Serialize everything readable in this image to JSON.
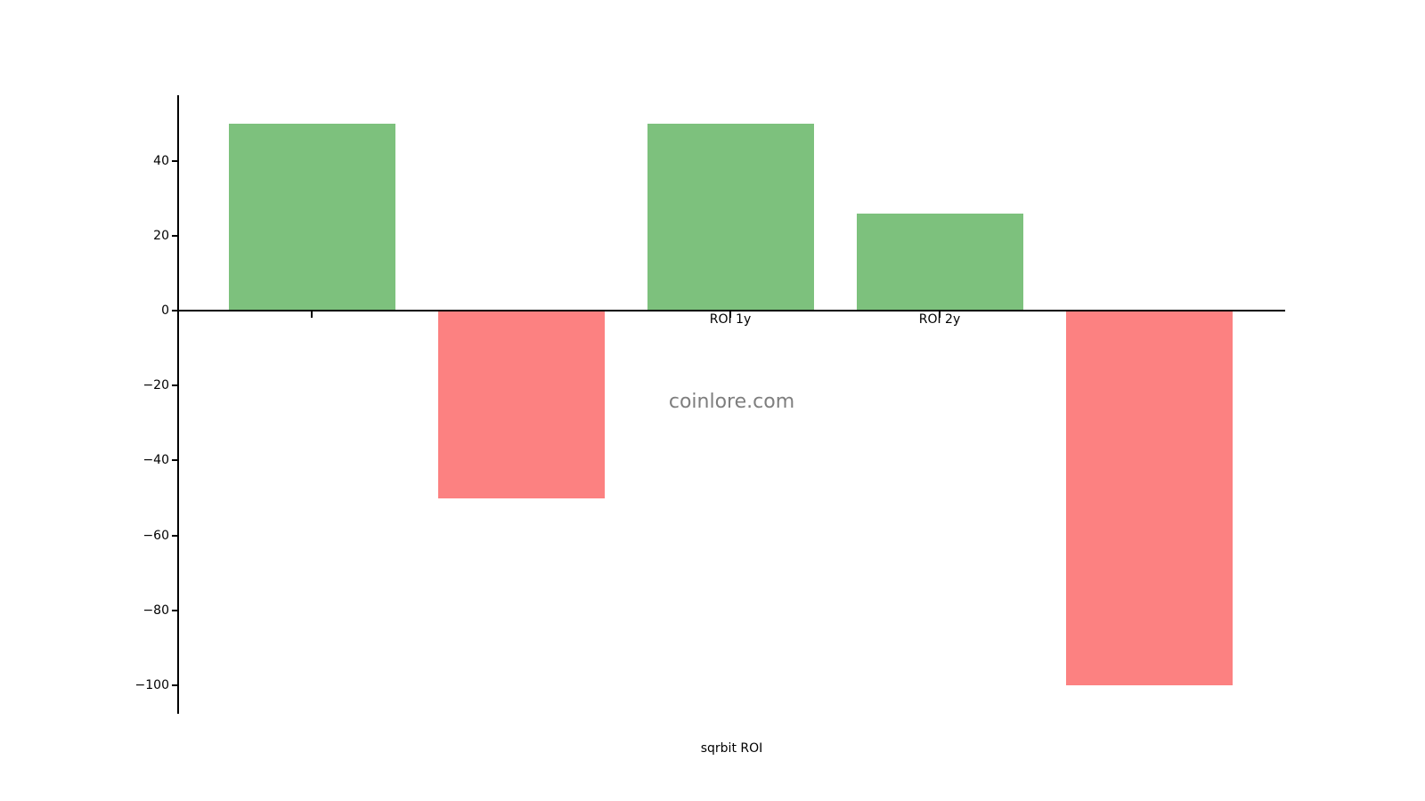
{
  "chart_data": {
    "type": "bar",
    "title": "",
    "xlabel": "sqrbit ROI",
    "ylabel": "",
    "watermark": "coinlore.com",
    "categories": [
      "",
      "",
      "ROI 1y",
      "ROI 2y",
      ""
    ],
    "values": [
      50,
      -50,
      50,
      26,
      -100
    ],
    "bar_names": [
      "bar-1",
      "bar-2",
      "bar-roi-1y",
      "bar-roi-2y",
      "bar-5"
    ],
    "ytick_values": [
      40,
      20,
      0,
      -20,
      -40,
      -60,
      -80,
      -100
    ],
    "ytick_labels": [
      "40",
      "20",
      "0",
      "−20",
      "−40",
      "−60",
      "−80",
      "−100"
    ],
    "ylim": [
      -107.5,
      57.5
    ],
    "grid": false,
    "legend": false,
    "colors": {
      "positive": "#7DC17D",
      "negative": "#FC8181",
      "axis": "#000000",
      "watermark": "#7E7E7E",
      "tick_text": "#000000"
    }
  }
}
